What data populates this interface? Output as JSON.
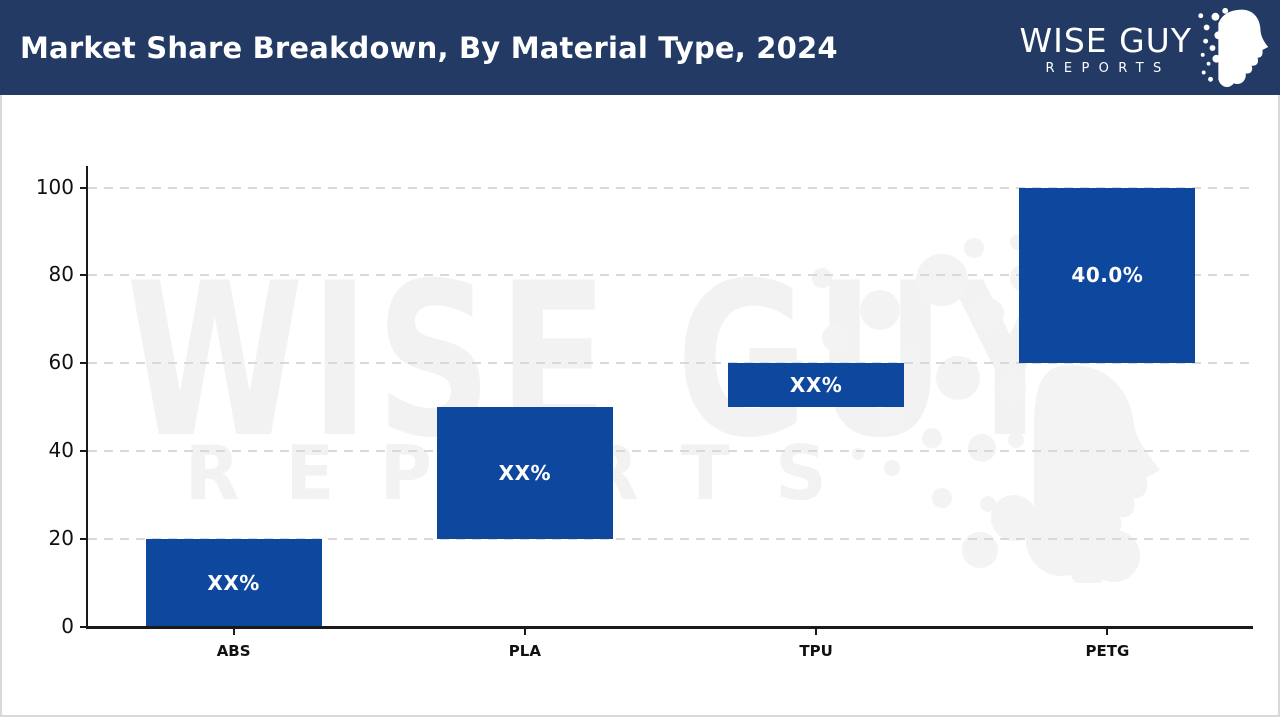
{
  "header": {
    "title": "Market Share Breakdown, By Material Type, 2024",
    "logo": {
      "line1": "WISE GUY",
      "line2": "REPORTS",
      "icon": "head-profile-dots"
    }
  },
  "watermark": {
    "line1": "WISE GUY",
    "line2": "REPORTS",
    "icon": "head-profile-dots"
  },
  "chart_data": {
    "type": "bar",
    "variant": "waterfall",
    "title": "Market Share Breakdown, By Material Type, 2024",
    "categories": [
      "ABS",
      "PLA",
      "TPU",
      "PETG"
    ],
    "segments": [
      {
        "category": "ABS",
        "start": 0,
        "end": 20,
        "value_label": "XX%"
      },
      {
        "category": "PLA",
        "start": 20,
        "end": 50,
        "value_label": "XX%"
      },
      {
        "category": "TPU",
        "start": 50,
        "end": 60,
        "value_label": "XX%"
      },
      {
        "category": "PETG",
        "start": 60,
        "end": 100,
        "value_label": "40.0%"
      }
    ],
    "yticks": [
      0,
      20,
      40,
      60,
      80,
      100
    ],
    "ylim": [
      0,
      100
    ],
    "xlabel": "",
    "ylabel": "",
    "grid": "horizontal-dashed",
    "legend": "none",
    "bar_color": "#0e489e"
  },
  "colors": {
    "header_bg": "#223a64",
    "bar": "#0e489e",
    "bar_label": "#ffffff",
    "grid": "#d9d9d9",
    "axis": "#1a1a1a",
    "watermark": "#f2f2f3",
    "frame_border": "#d9d9d9",
    "background": "#ffffff"
  }
}
